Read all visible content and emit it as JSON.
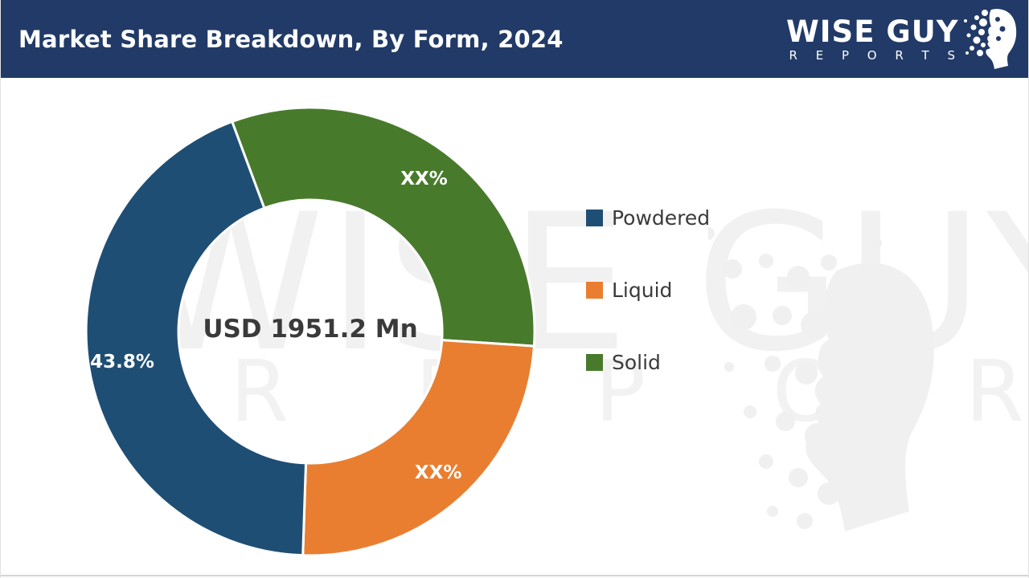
{
  "header": {
    "title": "Market Share Breakdown, By Form, 2024",
    "brand": {
      "line1": "WISE GUY",
      "line2": "R E P O R T S"
    }
  },
  "watermark": {
    "line1": "WISE GUY",
    "line2": "R E P O R T S"
  },
  "chart_data": {
    "type": "pie",
    "subtype": "donut",
    "title": "Market Share Breakdown, By Form, 2024",
    "center_label": "USD 1951.2 Mn",
    "start_angle_deg": -20.4,
    "segments": [
      {
        "name": "Solid",
        "value": 31.7,
        "label": "XX%",
        "color": "#487a2c"
      },
      {
        "name": "Liquid",
        "value": 24.5,
        "label": "XX%",
        "color": "#e97e31"
      },
      {
        "name": "Powdered",
        "value": 43.8,
        "label": "43.8%",
        "color": "#1f4e74"
      }
    ],
    "legend": [
      {
        "name": "Powdered",
        "color": "#1f4e74"
      },
      {
        "name": "Liquid",
        "color": "#e97e31"
      },
      {
        "name": "Solid",
        "color": "#487a2c"
      }
    ],
    "legend_position": "right"
  },
  "colors": {
    "header_bg": "#213a67",
    "text_dark": "#3a3a3a",
    "segment_gap": "#ffffff",
    "watermark": "#f1f1f1"
  }
}
